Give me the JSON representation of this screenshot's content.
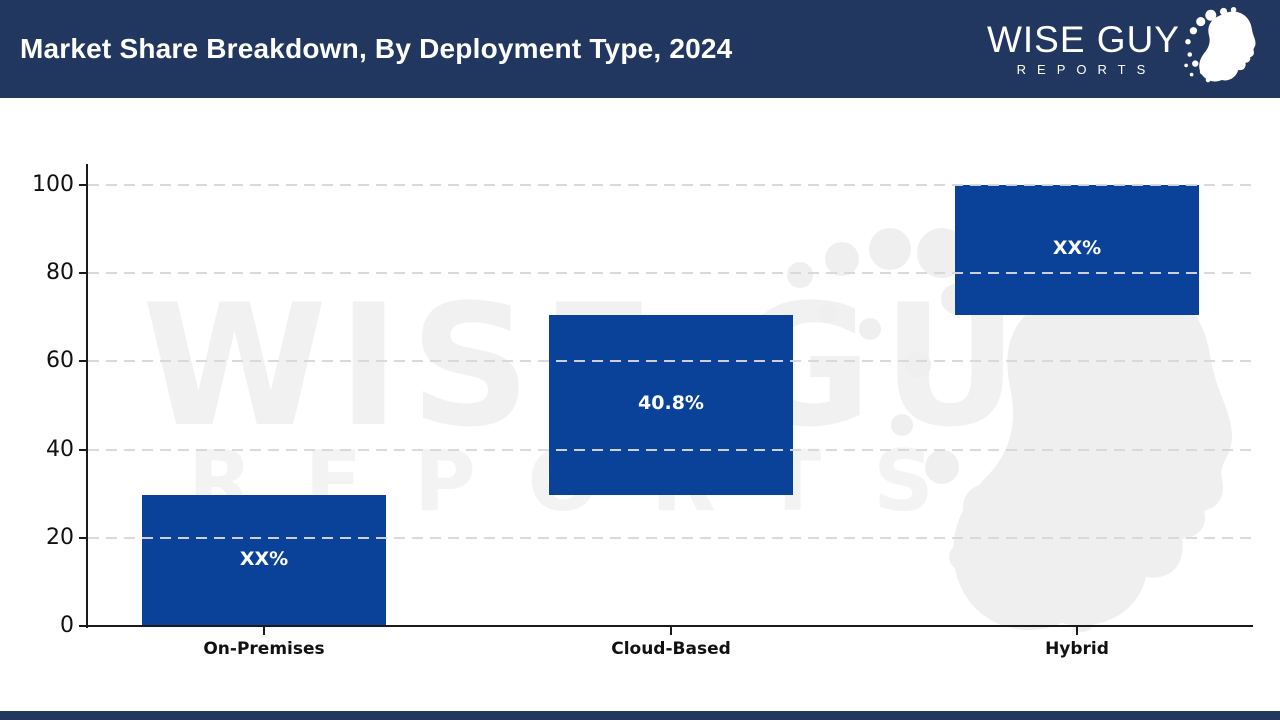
{
  "header": {
    "title": "Market Share Breakdown, By Deployment Type, 2024",
    "brand": {
      "line1": "WISE GUY",
      "line2": "REPORTS"
    }
  },
  "watermark": {
    "line1": "WISE GUY",
    "line2": "REPORTS"
  },
  "chart_data": {
    "type": "bar",
    "variant": "floating waterfall-style column chart",
    "title": "Market Share Breakdown, By Deployment Type, 2024",
    "categories": [
      "On-Premises",
      "Cloud-Based",
      "Hybrid"
    ],
    "series": [
      {
        "name": "Market share (%)",
        "segments": [
          {
            "category": "On-Premises",
            "start": 0,
            "end": 29.7,
            "label": "XX%"
          },
          {
            "category": "Cloud-Based",
            "start": 29.7,
            "end": 70.5,
            "label": "40.8%"
          },
          {
            "category": "Hybrid",
            "start": 70.5,
            "end": 100,
            "label": "XX%"
          }
        ]
      }
    ],
    "y_ticks": [
      0,
      20,
      40,
      60,
      80,
      100
    ],
    "ylim": [
      0,
      105
    ],
    "xlabel": "",
    "ylabel": "",
    "grid": "horizontal dashed gridlines drawn over bars",
    "legend": "none",
    "colors": {
      "header_bg": "#21375f",
      "footer_bar": "#21375f",
      "bar": "#0a429a",
      "grid": "#d8d8d8",
      "axis": "#1a1a1a",
      "bar_label_text": "#ffffff",
      "watermark": "#f1f1f1"
    }
  }
}
